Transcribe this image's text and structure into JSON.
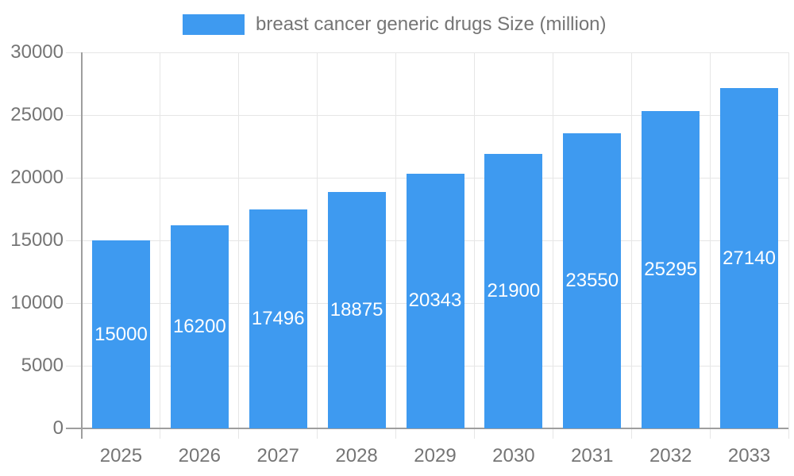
{
  "chart_data": {
    "type": "bar",
    "categories": [
      "2025",
      "2026",
      "2027",
      "2028",
      "2029",
      "2030",
      "2031",
      "2032",
      "2033"
    ],
    "series": [
      {
        "name": "breast cancer generic drugs Size (million)",
        "values": [
          15000,
          16200,
          17496,
          18875,
          20343,
          21900,
          23550,
          25295,
          27140
        ]
      }
    ],
    "bar_value_labels": [
      15000,
      16200,
      17496,
      18875,
      20343,
      21900,
      23550,
      25295,
      27140
    ],
    "ylim": [
      0,
      30000
    ],
    "yticks": [
      0,
      5000,
      10000,
      15000,
      20000,
      25000,
      30000
    ],
    "grid": true,
    "legend_position": "top",
    "colors": {
      "bar": "#3E9AF0",
      "grid": "#E6E6E6",
      "axis": "#9E9E9E",
      "tick_text": "#757575",
      "value_text": "#FFFFFF",
      "background": "#FFFFFF"
    }
  }
}
